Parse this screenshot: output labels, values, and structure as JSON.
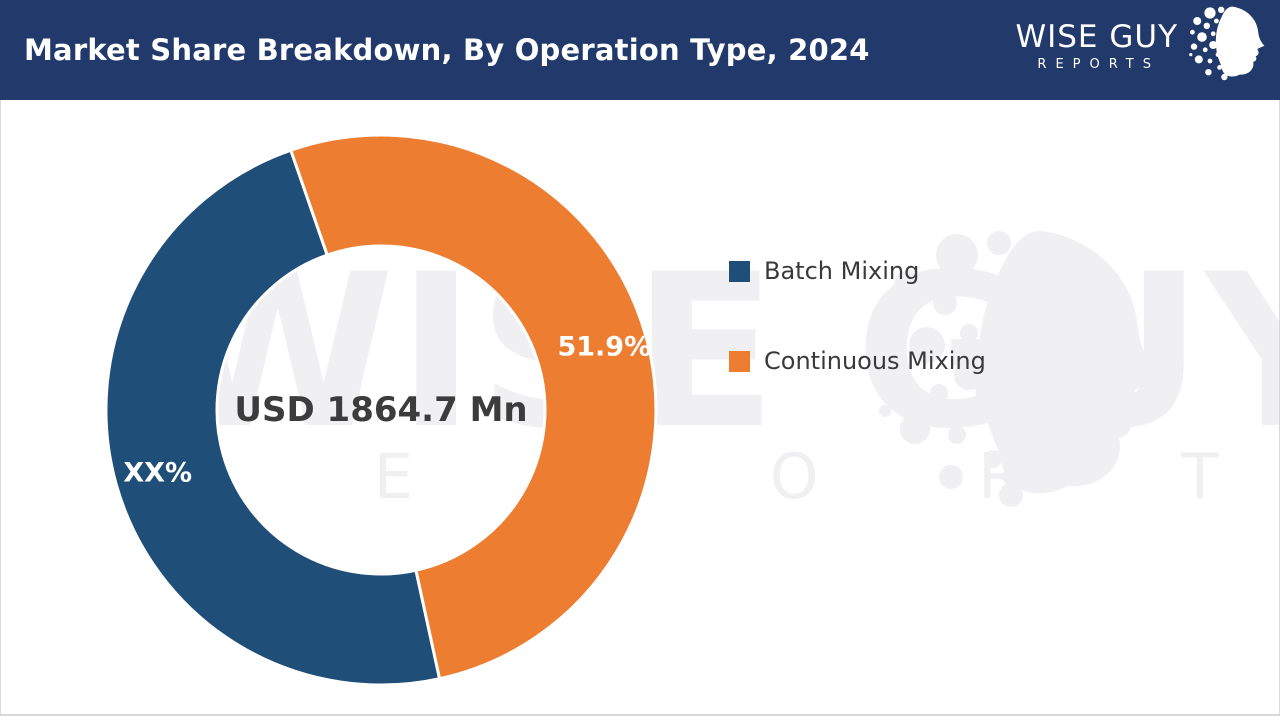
{
  "header": {
    "title": "Market Share Breakdown, By Operation Type, 2024",
    "logo": {
      "line1": "WISE GUY",
      "line2": "REPORTS"
    }
  },
  "watermark": {
    "line1": "WISE GUY",
    "line2": "R E P O R T S"
  },
  "chart_data": {
    "type": "donut",
    "title": "Market Share Breakdown, By Operation Type, 2024",
    "center_label": "USD 1864.7 Mn",
    "start_angle_deg": 167.7,
    "label_radius": 232,
    "legend_position": "right",
    "slices": [
      {
        "name": "Batch Mixing",
        "value": 48.1,
        "display_label": "XX%",
        "color": "#1f4e79"
      },
      {
        "name": "Continuous Mixing",
        "value": 51.9,
        "display_label": "51.9%",
        "color": "#ed7d31"
      }
    ]
  },
  "colors": {
    "header_bg": "#213a6b",
    "center_text": "#3c3c3c",
    "legend_text": "#3a3a3a",
    "watermark": "#f0f0f2",
    "card_border": "#d9d9d9",
    "slice_gap": "#ffffff"
  }
}
